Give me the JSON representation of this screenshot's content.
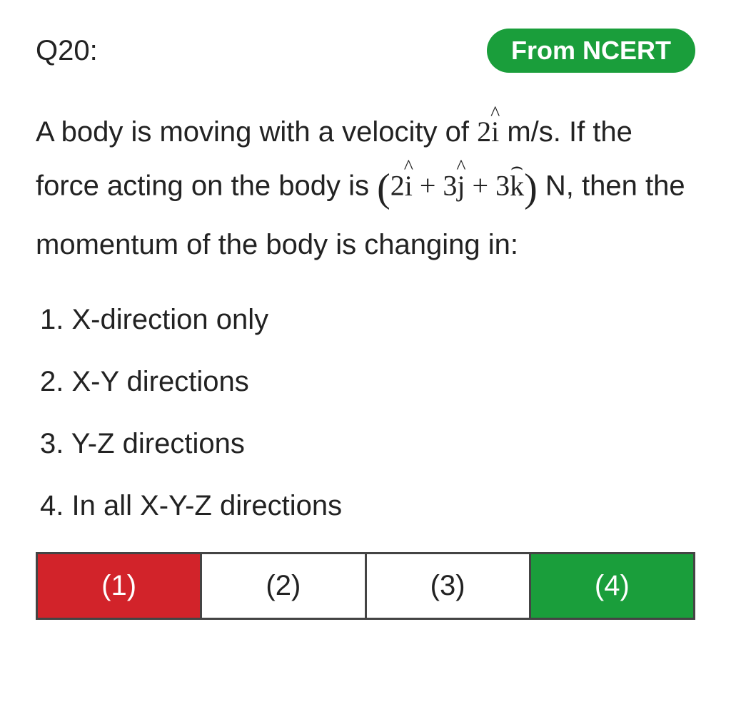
{
  "header": {
    "question_number": "Q20:",
    "badge_text": "From NCERT"
  },
  "question": {
    "part1": "A body is moving with a velocity of ",
    "vel_coef": "2",
    "vel_unit_i": "i",
    "vel_hat": "^",
    "part2": " m/s. If the force acting on the body is ",
    "lparen": "(",
    "f_i_coef": "2",
    "f_i": "i",
    "plus1": " + ",
    "f_j_coef": "3",
    "f_j": "j",
    "plus2": " + ",
    "f_k_coef": "3",
    "f_k": "k",
    "rparen": ")",
    "part3": " N, then the momentum of the body is changing in:",
    "hat": "^",
    "wide_hat": "⌢"
  },
  "options": [
    "1. X-direction only",
    "2. X-Y directions",
    "3. Y-Z directions",
    "4. In all X-Y-Z directions"
  ],
  "answers": {
    "cells": [
      "(1)",
      "(2)",
      "(3)",
      "(4)"
    ],
    "cell_colors": [
      "#d2232a",
      "#ffffff",
      "#ffffff",
      "#1a9e3b"
    ],
    "cell_text_colors": [
      "#ffffff",
      "#222222",
      "#222222",
      "#ffffff"
    ],
    "border_color": "#444444"
  },
  "style": {
    "badge_bg": "#1a9e3b",
    "badge_fg": "#ffffff",
    "body_bg": "#ffffff",
    "text_color": "#222222",
    "qnum_fontsize": 40,
    "body_fontsize": 40,
    "badge_fontsize": 36
  }
}
